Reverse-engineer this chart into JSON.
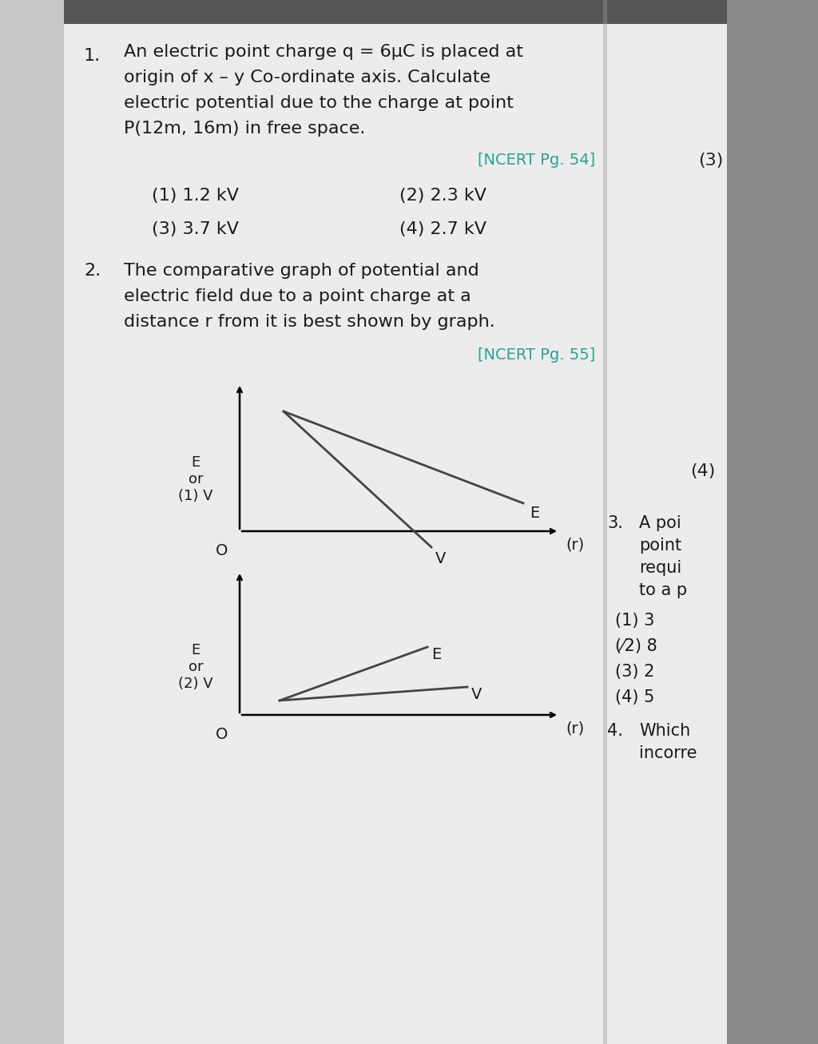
{
  "bg_color": "#c8c8c8",
  "content_bg": "#e8e8e8",
  "white_area": "#f0f0f0",
  "text_color": "#222222",
  "teal_color": "#2aa198",
  "dark_color": "#1a1a1a",
  "q1_number": "1.",
  "q1_lines": [
    "An electric point charge q = 6μC is placed at",
    "origin of x – y Co-ordinate axis. Calculate",
    "electric potential due to the charge at point",
    "P(12m, 16m) in free space."
  ],
  "ncert_ref1": "[NCERT Pg. 54]",
  "marks1": "(3)",
  "opts1": [
    "(1) 1.2 kV",
    "(2) 2.3 kV",
    "(3) 3.7 kV",
    "(4) 2.7 kV"
  ],
  "q2_number": "2.",
  "q2_lines": [
    "The comparative graph of potential and",
    "electric field due to a point charge at a",
    "distance r from it is best shown by graph."
  ],
  "ncert_ref2": "[NCERT Pg. 55]",
  "graph1_ylabel": "E\nor\n(1) V",
  "graph1_xlabel": "(r)",
  "graph1_origin": "O",
  "graph1_E_label": "E",
  "graph1_V_label": "V",
  "graph2_ylabel": "E\nor\n(2) V",
  "graph2_xlabel": "(r)",
  "graph2_origin": "O",
  "graph2_E_label": "E",
  "graph2_V_label": "V",
  "marks2": "(4)",
  "q3_number": "3.",
  "q3_partial": [
    "A poi",
    "point",
    "requi",
    "to a p"
  ],
  "q3_opts": [
    "(1) 3",
    "(⁄2) 8",
    "(3) 2",
    "(4) 5"
  ],
  "q4_number": "4.",
  "q4_partial": [
    "Which",
    "incorre"
  ],
  "right_bar_color": "#909090",
  "line_color": "#444444"
}
